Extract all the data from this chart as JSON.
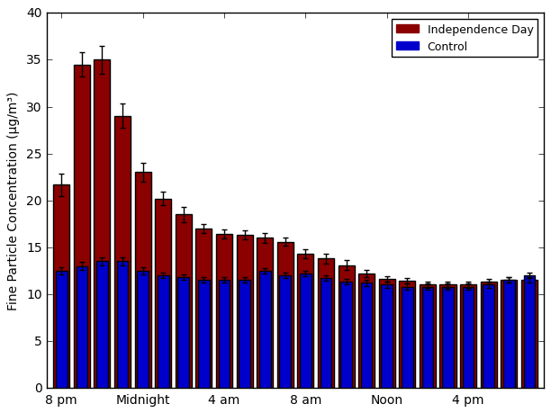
{
  "title": "",
  "ylabel": "Fine Particle Concentration (μg/m³)",
  "xlabel": "",
  "ylim": [
    0,
    40
  ],
  "yticks": [
    0,
    5,
    10,
    15,
    20,
    25,
    30,
    35,
    40
  ],
  "xtick_labels": [
    "8 pm",
    "Midnight",
    "4 am",
    "8 am",
    "Noon",
    "4 pm"
  ],
  "xtick_positions": [
    0,
    4,
    8,
    12,
    16,
    20
  ],
  "hours": 24,
  "independence_day": [
    21.7,
    34.5,
    35.0,
    29.0,
    23.0,
    20.2,
    18.5,
    17.0,
    16.4,
    16.3,
    16.0,
    15.6,
    14.3,
    13.8,
    13.1,
    12.2,
    11.6,
    11.4,
    11.0,
    11.0,
    11.0,
    11.3,
    11.5,
    11.5
  ],
  "independence_day_err": [
    1.2,
    1.3,
    1.5,
    1.3,
    1.0,
    0.7,
    0.8,
    0.5,
    0.5,
    0.5,
    0.5,
    0.4,
    0.5,
    0.5,
    0.5,
    0.4,
    0.3,
    0.3,
    0.3,
    0.3,
    0.3,
    0.3,
    0.3,
    0.3
  ],
  "control": [
    12.5,
    13.0,
    13.5,
    13.5,
    12.5,
    12.0,
    11.8,
    11.5,
    11.5,
    11.5,
    12.5,
    12.0,
    12.2,
    11.7,
    11.3,
    11.2,
    11.0,
    10.8,
    10.8,
    10.8,
    10.8,
    11.0,
    11.5,
    12.0
  ],
  "control_err": [
    0.4,
    0.4,
    0.4,
    0.4,
    0.4,
    0.3,
    0.3,
    0.3,
    0.3,
    0.3,
    0.3,
    0.3,
    0.3,
    0.3,
    0.3,
    0.3,
    0.3,
    0.3,
    0.3,
    0.3,
    0.3,
    0.3,
    0.3,
    0.3
  ],
  "ind_color": "#8B0000",
  "ctrl_color": "#0000CC",
  "background_color": "#ffffff",
  "legend_labels": [
    "Independence Day",
    "Control"
  ],
  "bar_width": 0.8,
  "figsize": [
    6.12,
    4.6
  ],
  "dpi": 100
}
